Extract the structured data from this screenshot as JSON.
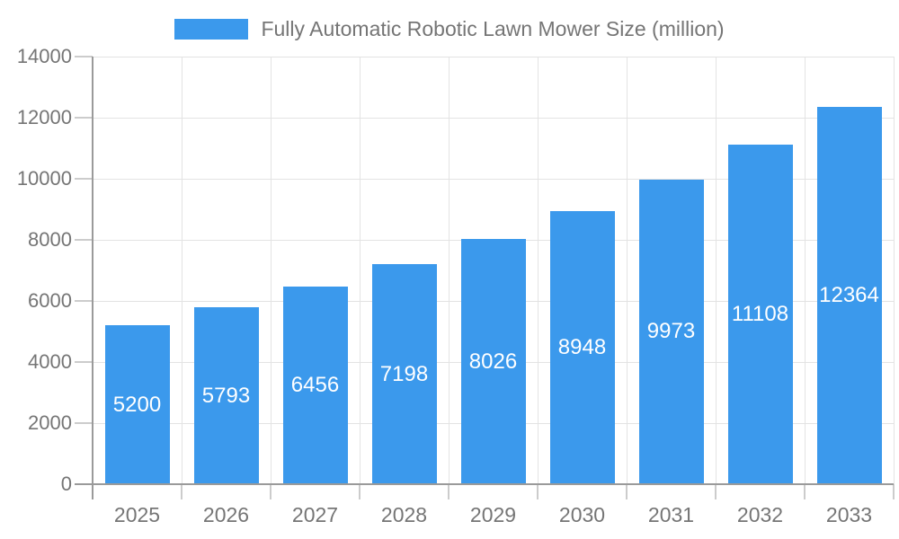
{
  "chart_data": {
    "type": "bar",
    "title": "Fully Automatic Robotic Lawn Mower Size (million)",
    "categories": [
      "2025",
      "2026",
      "2027",
      "2028",
      "2029",
      "2030",
      "2031",
      "2032",
      "2033"
    ],
    "values": [
      5200,
      5793,
      6456,
      7198,
      8026,
      8948,
      9973,
      11108,
      12364
    ],
    "xlabel": "",
    "ylabel": "",
    "ylim": [
      0,
      14000
    ],
    "yticks": [
      0,
      2000,
      4000,
      6000,
      8000,
      10000,
      12000,
      14000
    ],
    "grid": true,
    "legend_position": "top",
    "bar_color": "#3B99EC",
    "value_label_color": "#FFFFFF",
    "axis_text_color": "#757575",
    "gridline_color": "#E3E3E3",
    "axis_line_color": "#9A9A9A",
    "tick_color": "#CCCCCC",
    "background_color": "#FFFFFF"
  }
}
